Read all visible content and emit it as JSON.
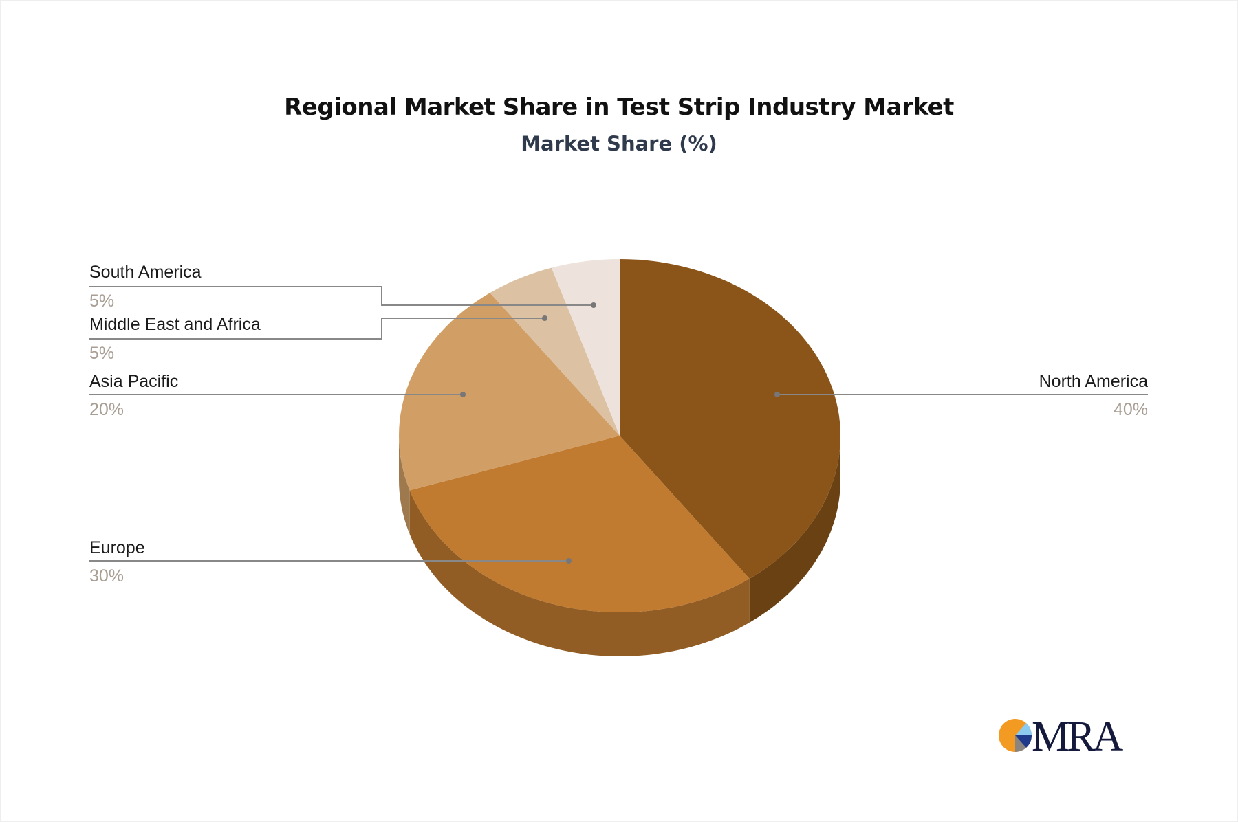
{
  "chart_data": {
    "type": "pie",
    "style": "3d",
    "title": "Regional Market Share in Test Strip Industry Market",
    "subtitle": "Market Share (%)",
    "slices": [
      {
        "label": "North America",
        "value": 40,
        "pct_label": "40%",
        "color": "#8B5519"
      },
      {
        "label": "Europe",
        "value": 30,
        "pct_label": "30%",
        "color": "#C07B30"
      },
      {
        "label": "Asia Pacific",
        "value": 20,
        "pct_label": "20%",
        "color": "#D19F66"
      },
      {
        "label": "Middle East and Africa",
        "value": 5,
        "pct_label": "5%",
        "color": "#DCC1A3"
      },
      {
        "label": "South America",
        "value": 5,
        "pct_label": "5%",
        "color": "#EDE3DC"
      }
    ]
  },
  "logo": {
    "text": "MRA"
  }
}
